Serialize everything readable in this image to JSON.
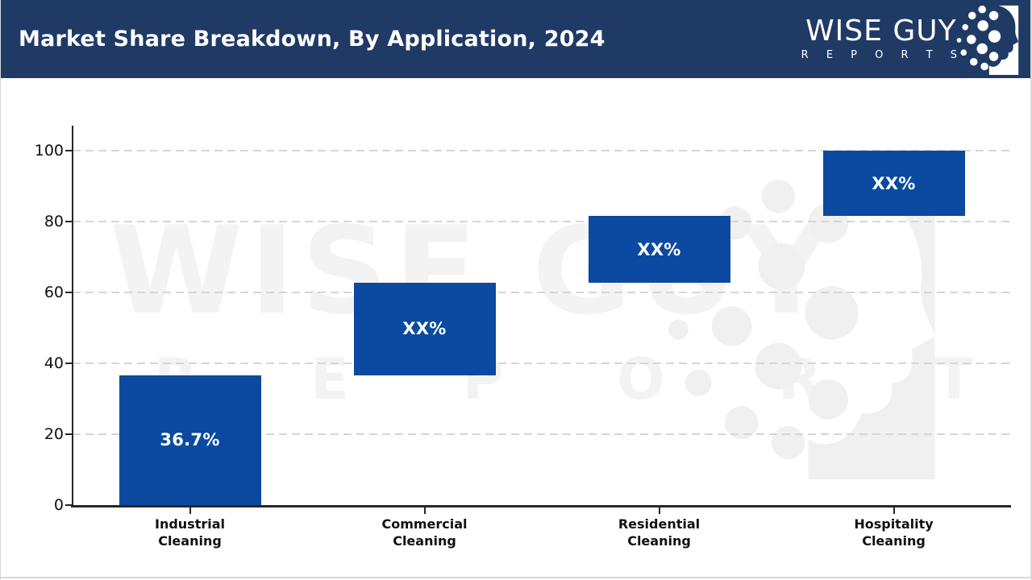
{
  "header": {
    "title": "Market Share Breakdown, By Application, 2024",
    "logo": {
      "name": "WISE GUY",
      "subtitle": "R E P O R T S"
    }
  },
  "watermark": {
    "line1": "WISE GUY",
    "line2": "R E P O R T S"
  },
  "colors": {
    "header_bg": "#203a66",
    "bar": "#0b4aa0",
    "bar_label": "#ffffff",
    "axis_text": "#111111",
    "grid": "#d6d6d6",
    "watermark": "#f3f3f3",
    "border": "#d9d9d9"
  },
  "chart_data": {
    "type": "bar",
    "variant": "waterfall",
    "title": "Market Share Breakdown, By Application, 2024",
    "categories": [
      "Industrial Cleaning",
      "Commercial Cleaning",
      "Residential Cleaning",
      "Hospitality Cleaning"
    ],
    "segments": [
      {
        "category": "Industrial Cleaning",
        "start": 0,
        "end": 36.7,
        "value_label": "36.7%"
      },
      {
        "category": "Commercial Cleaning",
        "start": 36.7,
        "end": 62.8,
        "value_label": "XX%"
      },
      {
        "category": "Residential Cleaning",
        "start": 62.8,
        "end": 81.5,
        "value_label": "XX%"
      },
      {
        "category": "Hospitality Cleaning",
        "start": 81.5,
        "end": 100,
        "value_label": "XX%"
      }
    ],
    "yticks": [
      0,
      20,
      40,
      60,
      80,
      100
    ],
    "ylim": [
      0,
      107
    ],
    "xlabel": "",
    "ylabel": "",
    "grid": "horizontal-dashed",
    "legend": null
  }
}
